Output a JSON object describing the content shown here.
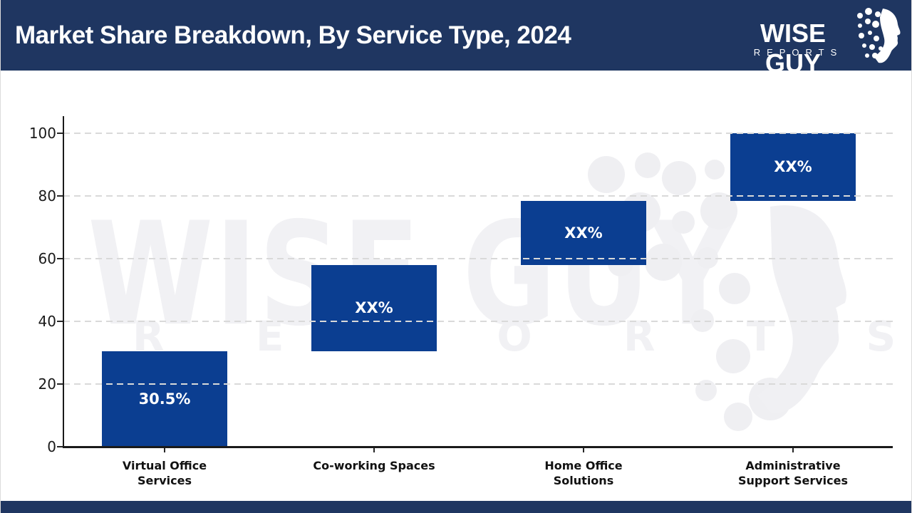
{
  "header": {
    "title": "Market Share Breakdown, By Service Type, 2024",
    "bg_color": "#1f3661",
    "logo": {
      "line1": "WISE GUY",
      "line2": "REPORTS"
    }
  },
  "watermark": {
    "line1": "WISE GUY",
    "line2": "R E P O R T S"
  },
  "footer": {
    "bg_color": "#1f3661"
  },
  "chart_data": {
    "type": "bar",
    "variant": "waterfall",
    "title": "Market Share Breakdown, By Service Type, 2024",
    "categories": [
      "Virtual Office Services",
      "Co-working Spaces",
      "Home Office Solutions",
      "Administrative Support Services"
    ],
    "category_lines": [
      [
        "Virtual Office",
        "Services"
      ],
      [
        "Co-working Spaces"
      ],
      [
        "Home Office",
        "Solutions"
      ],
      [
        "Administrative",
        "Support Services"
      ]
    ],
    "segments": [
      {
        "category": "Virtual Office Services",
        "start": 0,
        "end": 30.5,
        "label": "30.5%"
      },
      {
        "category": "Co-working Spaces",
        "start": 30.5,
        "end": 58,
        "label": "XX%"
      },
      {
        "category": "Home Office Solutions",
        "start": 58,
        "end": 78.5,
        "label": "XX%"
      },
      {
        "category": "Administrative Support Services",
        "start": 78.5,
        "end": 100,
        "label": "XX%"
      }
    ],
    "xlabel": "",
    "ylabel": "",
    "yticks": [
      0,
      20,
      40,
      60,
      80,
      100
    ],
    "ylim": [
      0,
      105.5
    ],
    "grid": "horizontal-dashed",
    "legend": "none",
    "bar_color": "#0b3e91",
    "bar_label_color": "#ffffff"
  }
}
